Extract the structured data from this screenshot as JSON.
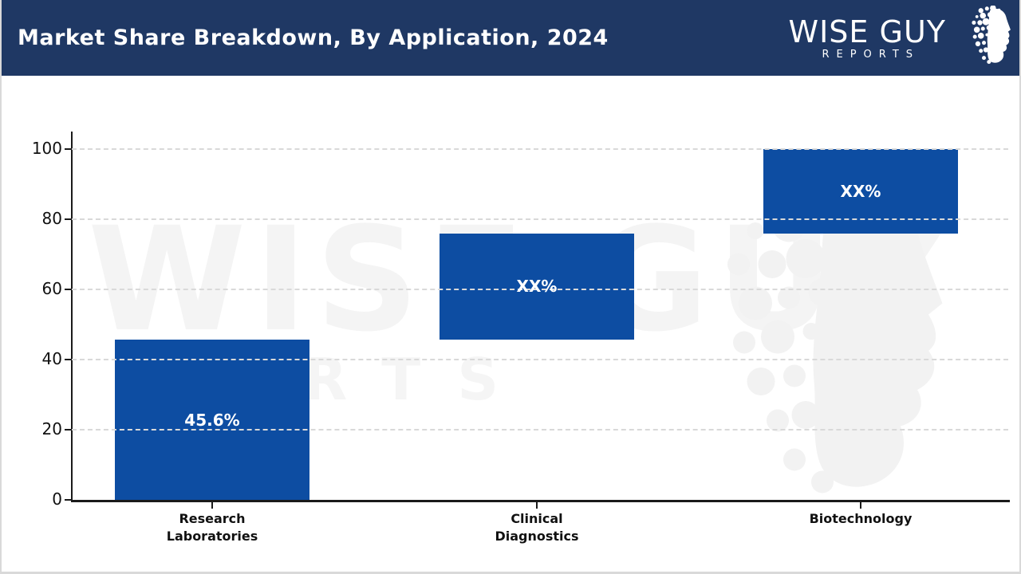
{
  "header": {
    "title": "Market Share Breakdown, By Application, 2024",
    "logo_line1": "WISE GUY",
    "logo_line2": "REPORTS"
  },
  "watermark": {
    "line1": "WISE GUY",
    "line2": "PORTS"
  },
  "chart_data": {
    "type": "bar",
    "variant": "waterfall",
    "title": "Market Share Breakdown, By Application, 2024",
    "categories": [
      "Research\nLaboratories",
      "Clinical\nDiagnostics",
      "Biotechnology"
    ],
    "series": [
      {
        "name": "Market Share (%)",
        "segments": [
          {
            "category": "Research Laboratories",
            "start": 0,
            "end": 45.6,
            "label": "45.6%"
          },
          {
            "category": "Clinical Diagnostics",
            "start": 45.6,
            "end": 76,
            "label": "XX%"
          },
          {
            "category": "Biotechnology",
            "start": 76,
            "end": 100,
            "label": "XX%"
          }
        ]
      }
    ],
    "yticks": [
      0,
      20,
      40,
      60,
      80,
      100
    ],
    "ylim": [
      0,
      100
    ],
    "xlabel": "",
    "ylabel": "",
    "grid": {
      "axis": "y",
      "style": "dashed"
    },
    "legend": "none",
    "colors": {
      "bar": "#0d4da2",
      "bar_label": "#ffffff",
      "header_bg": "#1f3864",
      "grid": "#d9d9d9",
      "axis": "#1a1a1a",
      "watermark": "#f4f4f4"
    }
  }
}
